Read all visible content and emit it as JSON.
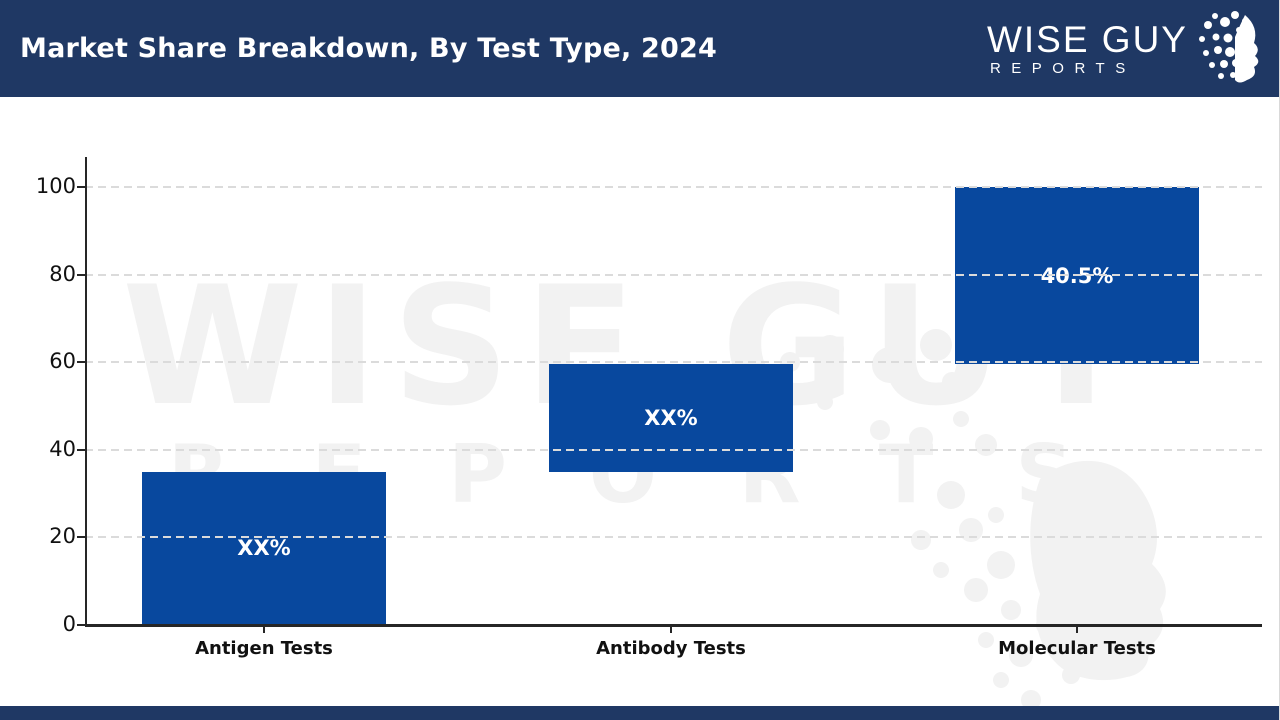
{
  "header": {
    "title": "Market Share Breakdown, By Test Type, 2024",
    "bg_color": "#1F3864",
    "text_color": "#FFFFFF",
    "logo": {
      "wordmark": "WISE GUY",
      "reports": "REPORTS"
    }
  },
  "watermark": {
    "wordmark": "WISE GUY",
    "reports": "REPORTS",
    "color": "#F2F2F2"
  },
  "footer": {
    "bg_color": "#1F3864"
  },
  "chart_data": {
    "type": "bar",
    "subtype": "waterfall",
    "title": "Market Share Breakdown, By Test Type, 2024",
    "categories": [
      "Antigen Tests",
      "Antibody Tests",
      "Molecular Tests"
    ],
    "series": [
      {
        "name": "Market Share",
        "segments": [
          {
            "category": "Antigen Tests",
            "from": 0,
            "to": 35,
            "value_est": 35,
            "label": "XX%"
          },
          {
            "category": "Antibody Tests",
            "from": 35,
            "to": 59.5,
            "value_est": 24.5,
            "label": "XX%"
          },
          {
            "category": "Molecular Tests",
            "from": 59.5,
            "to": 100,
            "value_est": 40.5,
            "label": "40.5%"
          }
        ]
      }
    ],
    "ylim": [
      0,
      100
    ],
    "yticks": [
      0,
      20,
      40,
      60,
      80,
      100
    ],
    "xlabel": "",
    "ylabel": "",
    "grid": "horizontal-dashed",
    "legend": "none",
    "bar_color": "#08489E",
    "bar_label_color": "#FFFFFF",
    "axis_color": "#262626",
    "gridline_color": "#DBDBDB"
  }
}
